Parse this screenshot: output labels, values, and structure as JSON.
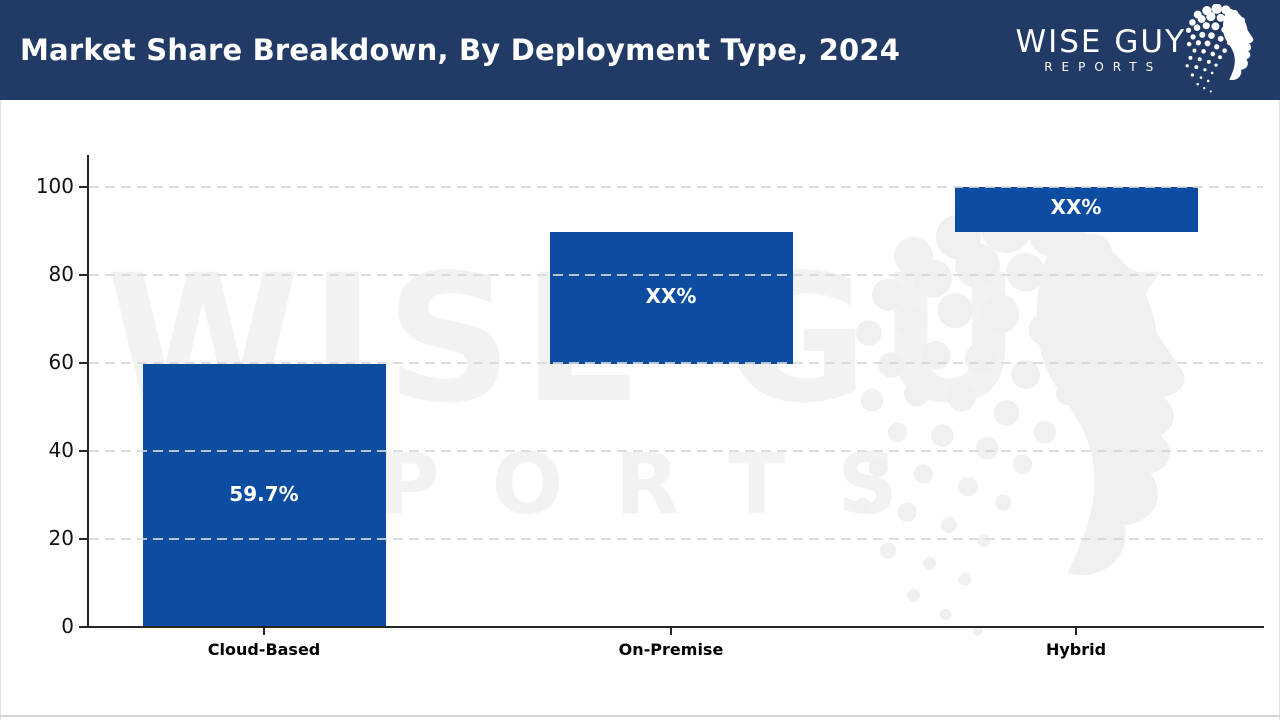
{
  "header": {
    "title": "Market Share Breakdown, By Deployment Type, 2024",
    "background_color": "#223a66"
  },
  "logo": {
    "line1": "WISE GUY",
    "line2": "REPORTS",
    "face_icon": "dotted-head-profile-icon",
    "color": "#ffffff"
  },
  "watermark": {
    "line1": "WISE GUY",
    "line2": "REPORTS",
    "face_icon": "dotted-head-profile-icon",
    "color": "#f2f2f2"
  },
  "chart_data": {
    "type": "bar",
    "variant": "waterfall",
    "title": "Market Share Breakdown, By Deployment Type, 2024",
    "xlabel": "",
    "ylabel": "",
    "categories": [
      "Cloud-Based",
      "On-Premise",
      "Hybrid"
    ],
    "segments": [
      {
        "category": "Cloud-Based",
        "start": 0,
        "end": 59.7,
        "value_label": "59.7%"
      },
      {
        "category": "On-Premise",
        "start": 59.7,
        "end": 89.8,
        "value_label": "XX%"
      },
      {
        "category": "Hybrid",
        "start": 89.8,
        "end": 100,
        "value_label": "XX%"
      }
    ],
    "ylim": [
      0,
      100
    ],
    "yticks": [
      0,
      20,
      40,
      60,
      80,
      100
    ],
    "grid": true,
    "grid_style": "dashed",
    "legend": false,
    "bar_color": "#0c4da2",
    "bar_label_color": "#ffffff",
    "axis_color": "#262626",
    "gridline_color": "#d9d9d9"
  }
}
